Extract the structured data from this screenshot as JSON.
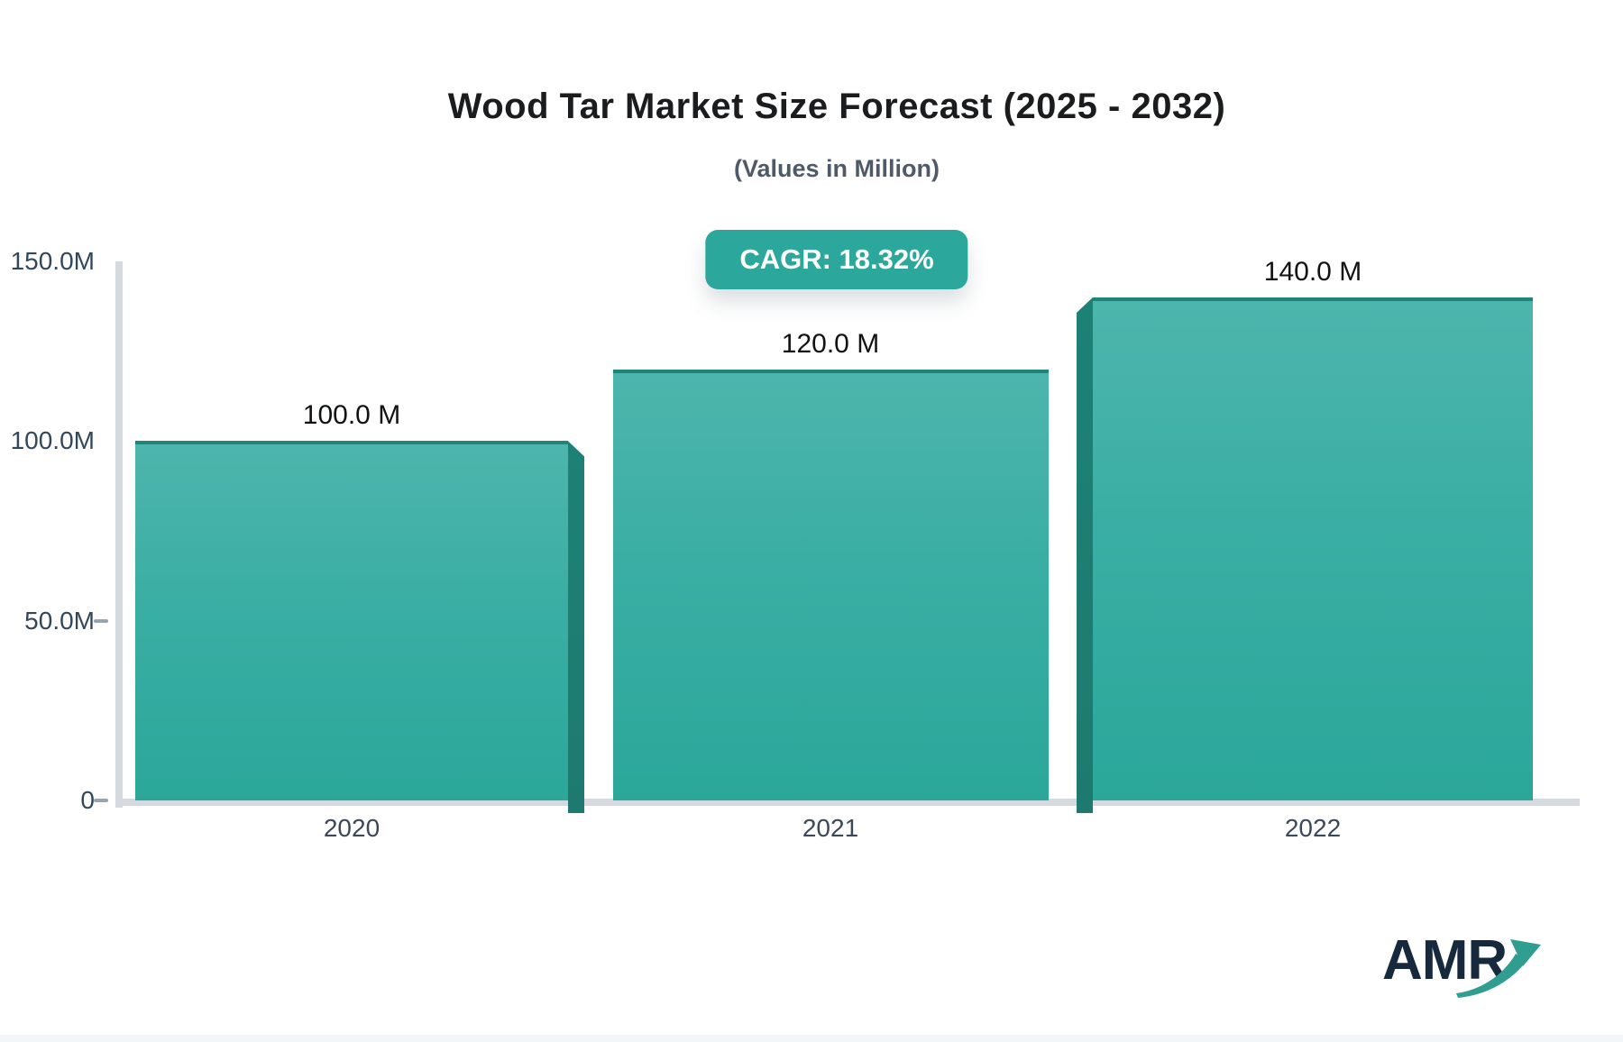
{
  "header": {
    "title": "Wood Tar Market Size Forecast (2025 - 2032)",
    "subtitle": "(Values in Million)"
  },
  "badge": {
    "label": "CAGR: 18.32%"
  },
  "logo": {
    "text": "AMR",
    "icon": "trend-arrow-icon"
  },
  "colors": {
    "bar_gradient_top": "#4DB5AC",
    "bar_gradient_bottom": "#2BA79A",
    "bar_top_border": "#1F857A",
    "bar_3d_edge": "#1E7A6E",
    "badge_background": "#2BA79B",
    "badge_text": "#FFFFFF",
    "axis_line": "#D5D9E0",
    "tick_label": "#33475B",
    "value_label": "#101214",
    "title_text": "#1A1C1E",
    "subtitle_text": "#4E5A68",
    "logo_navy": "#16293D",
    "logo_teal": "#2F9D90"
  },
  "chart_data": {
    "type": "bar",
    "title": "Wood Tar Market Size Forecast (2025 - 2032)",
    "subtitle": "(Values in Million)",
    "annotation": "CAGR: 18.32%",
    "categories": [
      "2020",
      "2021",
      "2022"
    ],
    "values": [
      100.0,
      120.0,
      140.0
    ],
    "value_labels": [
      "100.0 M",
      "120.0 M",
      "140.0 M"
    ],
    "xlabel": "",
    "ylabel": "",
    "ylim": [
      0,
      150
    ],
    "ytick_labels": [
      "150.0M",
      "100.0M",
      "50.0M",
      "0"
    ],
    "ytick_values": [
      150,
      100,
      50,
      0
    ],
    "grid": false,
    "legend": "none",
    "bar_style": "3d-teal-gradient"
  }
}
